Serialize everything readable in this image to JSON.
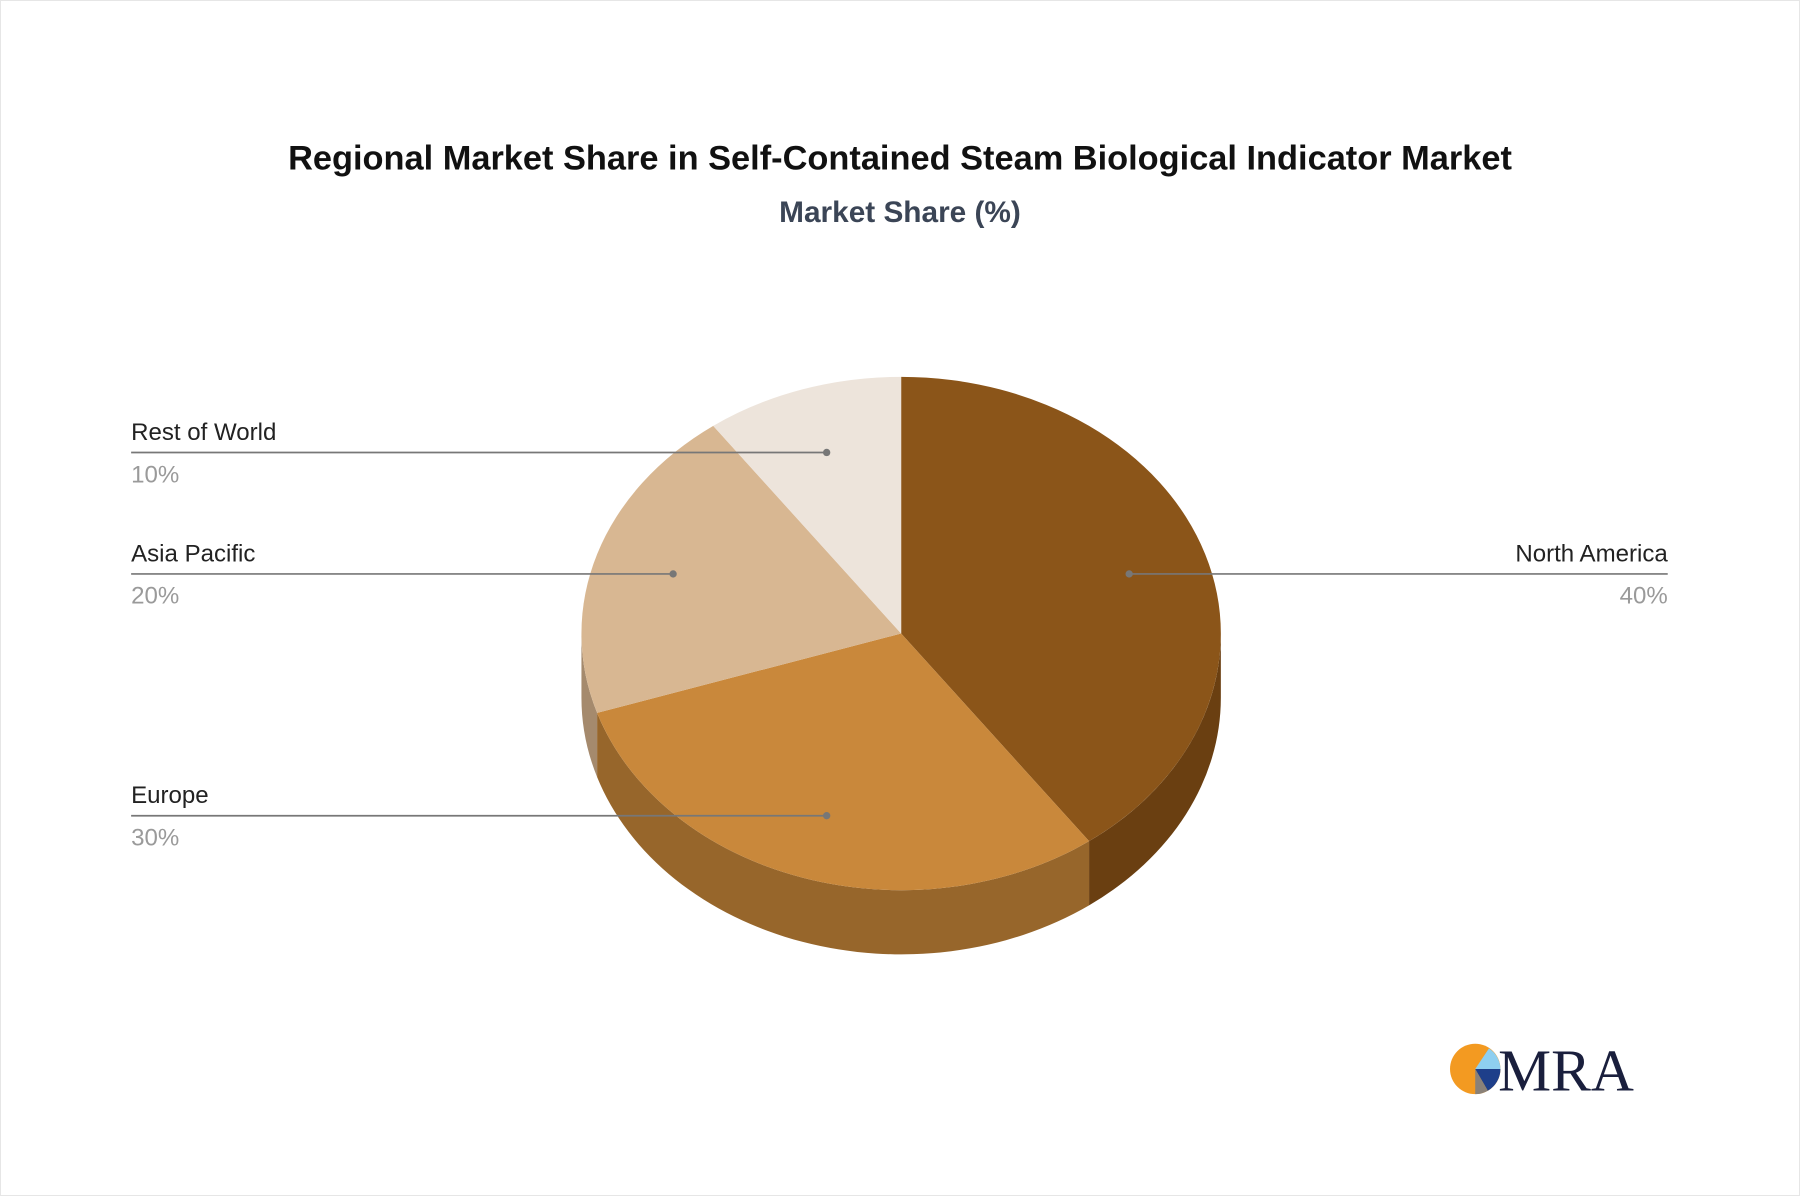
{
  "chart_data": {
    "type": "pie",
    "title": "Regional Market Share in Self-Contained Steam Biological Indicator Market",
    "subtitle": "Market Share (%)",
    "style": "3d",
    "slices": [
      {
        "label": "North America",
        "value": 40,
        "value_label": "40%",
        "color": "#8B5519",
        "side_color": "#6A3F11"
      },
      {
        "label": "Europe",
        "value": 30,
        "value_label": "30%",
        "color": "#C9883B",
        "side_color": "#97662B"
      },
      {
        "label": "Asia Pacific",
        "value": 20,
        "value_label": "20%",
        "color": "#D8B792",
        "side_color": "#A58A6D"
      },
      {
        "label": "Rest of World",
        "value": 10,
        "value_label": "10%",
        "color": "#EDE4DB",
        "side_color": "#BDB2A6"
      }
    ]
  },
  "logo": {
    "text": "MRA",
    "colors": [
      "#F39A21",
      "#8ECFF0",
      "#1E3F8A",
      "#8A8178",
      "#1A1F3D"
    ]
  }
}
